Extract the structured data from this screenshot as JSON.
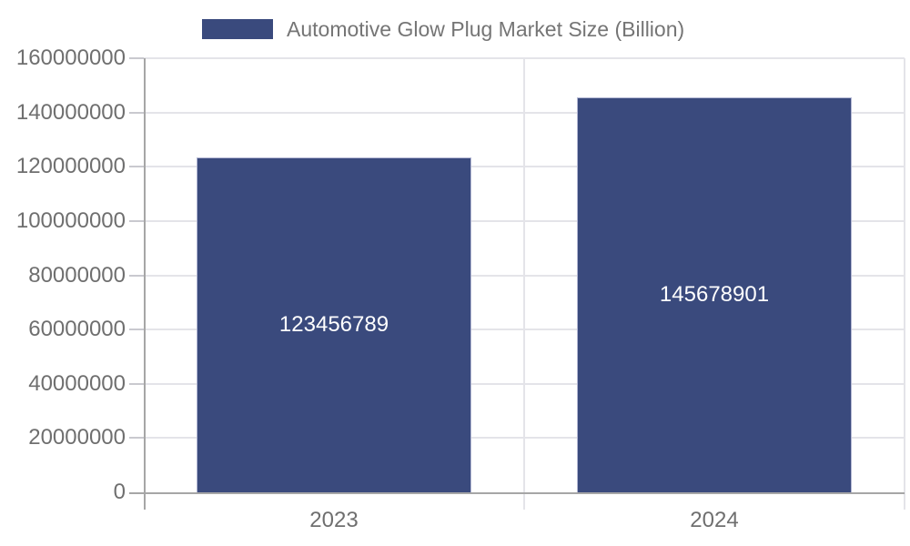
{
  "chart_data": {
    "type": "bar",
    "title": "Automotive Glow Plug Market Size (Billion)",
    "categories": [
      "2023",
      "2024"
    ],
    "values": [
      123456789,
      145678901
    ],
    "data_labels": [
      "123456789",
      "145678901"
    ],
    "xlabel": "",
    "ylabel": "",
    "ylim": [
      0,
      160000000
    ],
    "yticks": [
      0,
      20000000,
      40000000,
      60000000,
      80000000,
      100000000,
      120000000,
      140000000,
      160000000
    ],
    "ytick_labels": [
      "0",
      "20000000",
      "40000000",
      "60000000",
      "80000000",
      "100000000",
      "120000000",
      "140000000",
      "160000000"
    ],
    "grid": true,
    "legend_position": "top",
    "legend_entries": [
      "Automotive Glow Plug Market Size (Billion)"
    ],
    "colors": {
      "bar_fill": "#3A4A7D",
      "bar_border": "#B3B7D3",
      "bar_label": "#FFFFFF",
      "axis_line": "#A6A6A6",
      "gridline": "#E4E4E9",
      "tick_mark": "#C9C9CF",
      "tick_label": "#6F6F6F",
      "legend_text": "#757575",
      "background": "#FFFFFF"
    }
  }
}
